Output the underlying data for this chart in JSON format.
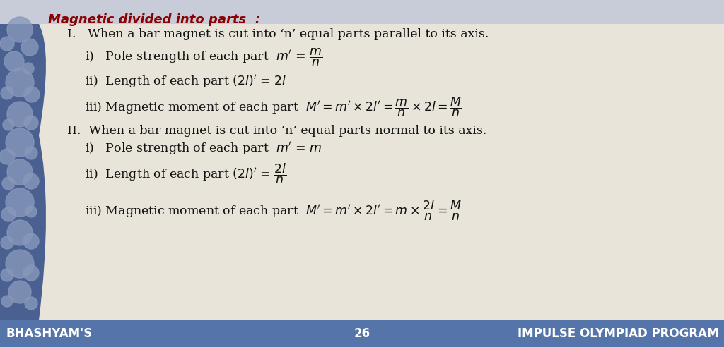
{
  "bg_color": "#c8ccd8",
  "content_bg": "#e8e4da",
  "title_text": "Magnetic divided into parts  :",
  "title_color": "#8B0000",
  "section_I_heading": "I.   When a bar magnet is cut into ‘n’ equal parts parallel to its axis.",
  "section_II_heading": "II.  When a bar magnet is cut into ‘n’ equal parts normal to its axis.",
  "footer_left": "BHASHYAM'S",
  "footer_center": "26",
  "footer_right": "IMPULSE OLYMPIAD PROGRAM",
  "footer_bg": "#5575aa",
  "footer_text_color": "#ffffff",
  "left_bar_color": "#4a6090",
  "circle_color": "#8898bb",
  "text_color": "#111111",
  "figwidth": 10.24,
  "figheight": 4.92
}
